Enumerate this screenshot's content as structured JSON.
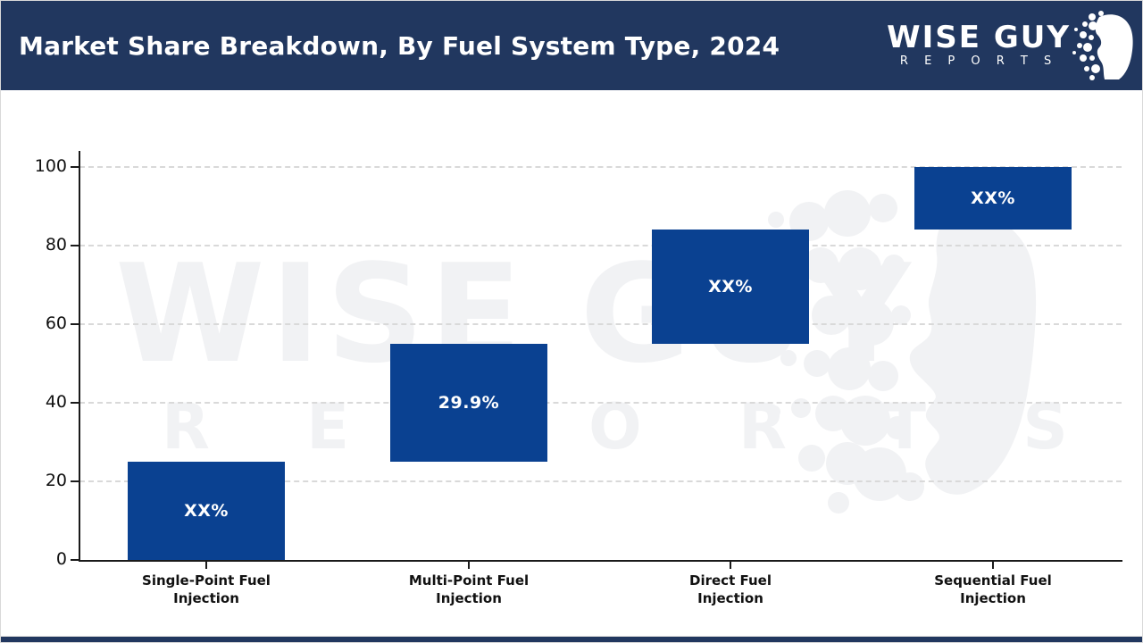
{
  "header": {
    "title": "Market Share Breakdown, By Fuel System Type, 2024",
    "logo": {
      "brand": "WISE GUY",
      "sub": "R E P O R T S"
    }
  },
  "watermark": {
    "brand": "WISE GUY",
    "sub": "R E P O R T S"
  },
  "chart_data": {
    "type": "bar",
    "subtype": "floating-segment-waterfall",
    "title": "Market Share Breakdown, By Fuel System Type, 2024",
    "categories": [
      "Single-Point Fuel\nInjection",
      "Multi-Point Fuel\nInjection",
      "Direct Fuel\nInjection",
      "Sequential Fuel\nInjection"
    ],
    "series": [
      {
        "name": "Market share (%)",
        "segments": [
          {
            "category": "Single-Point Fuel Injection",
            "from": 0,
            "to": 25,
            "label": "XX%"
          },
          {
            "category": "Multi-Point Fuel Injection",
            "from": 25,
            "to": 55,
            "label": "29.9%"
          },
          {
            "category": "Direct Fuel Injection",
            "from": 55,
            "to": 84,
            "label": "XX%"
          },
          {
            "category": "Sequential Fuel Injection",
            "from": 84,
            "to": 100,
            "label": "XX%"
          }
        ]
      }
    ],
    "xlabel": "",
    "ylabel": "",
    "ylim": [
      0,
      100
    ],
    "yticks": [
      0,
      20,
      40,
      60,
      80,
      100
    ],
    "grid": "horizontal-dashed",
    "legend": "none",
    "colors": {
      "bar": "#0a4191",
      "bar_label": "#ffffff",
      "axis": "#1a1a1a",
      "grid": "#d9d9d9",
      "header_bg": "#21375f",
      "watermark": "#f1f2f4"
    }
  }
}
